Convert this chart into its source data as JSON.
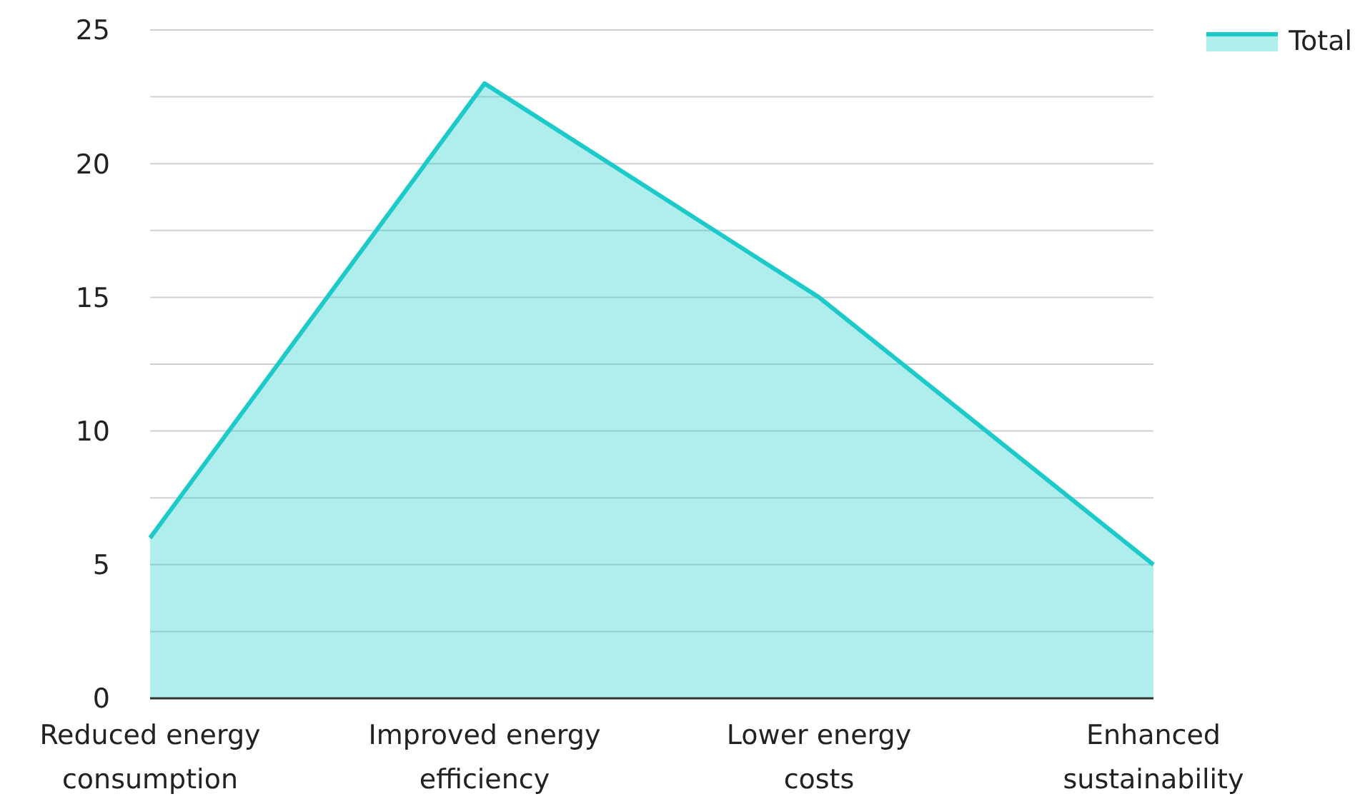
{
  "chart_data": {
    "type": "area",
    "categories": [
      "Reduced energy consumption",
      "Improved energy efficiency",
      "Lower energy costs",
      "Enhanced sustainability"
    ],
    "series": [
      {
        "name": "Total",
        "color": "#1ccaca",
        "values": [
          6,
          23,
          15,
          5
        ]
      }
    ],
    "ylim": [
      0,
      25
    ],
    "yticks": [
      0,
      {
        "value": 2.5,
        "label": null
      },
      5,
      {
        "value": 7.5,
        "label": null
      },
      10,
      {
        "value": 12.5,
        "label": null
      },
      15,
      {
        "value": 17.5,
        "label": null
      },
      20,
      {
        "value": 22.5,
        "label": null
      },
      25
    ],
    "grid": "y",
    "legend": "top right"
  }
}
